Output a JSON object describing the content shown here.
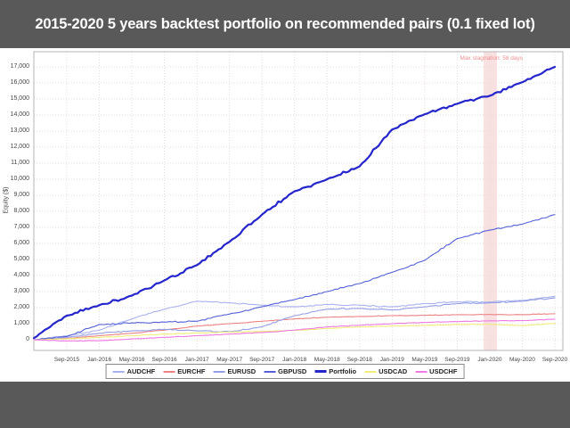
{
  "header": {
    "title": "2015-2020 5 years backtest portfolio on recommended pairs (0.1 fixed lot)"
  },
  "chart_data": {
    "type": "line",
    "title": "2015-2020 5 years backtest portfolio on recommended pairs (0.1 fixed lot)",
    "xlabel": "",
    "ylabel": "Equity ($)",
    "ylim": [
      -700,
      17700
    ],
    "grid": true,
    "legend_position": "bottom",
    "y_ticks": [
      "0",
      "1,000",
      "2,000",
      "3,000",
      "4,000",
      "5,000",
      "6,000",
      "7,000",
      "8,000",
      "9,000",
      "10,000",
      "11,000",
      "12,000",
      "13,000",
      "14,000",
      "15,000",
      "16,000",
      "17,000"
    ],
    "y_tick_values": [
      0,
      1000,
      2000,
      3000,
      4000,
      5000,
      6000,
      7000,
      8000,
      9000,
      10000,
      11000,
      12000,
      13000,
      14000,
      15000,
      16000,
      17000
    ],
    "x_ticks": [
      "Sep-2015",
      "Jan-2016",
      "May-2016",
      "Sep-2016",
      "Jan-2017",
      "May-2017",
      "Sep-2017",
      "Jan-2018",
      "May-2018",
      "Sep-2018",
      "Jan-2019",
      "May-2019",
      "Sep-2019",
      "Jan-2020",
      "May-2020",
      "Sep-2020"
    ],
    "x_points_note": "first value of each series is at the left plot edge (backtest start), remaining 16 align with x_ticks",
    "series": [
      {
        "name": "AUDCHF",
        "color": "#a8b2ee",
        "bold": false,
        "values": [
          0,
          250,
          600,
          1300,
          1900,
          2400,
          2300,
          2150,
          2050,
          2200,
          2150,
          2050,
          2250,
          2350,
          2350,
          2450,
          2700
        ]
      },
      {
        "name": "EURCHF",
        "color": "#ec8282",
        "bold": false,
        "values": [
          0,
          80,
          250,
          400,
          600,
          850,
          1000,
          1150,
          1300,
          1400,
          1450,
          1500,
          1520,
          1560,
          1570,
          1560,
          1620
        ]
      },
      {
        "name": "EURUSD",
        "color": "#949ee4",
        "bold": false,
        "values": [
          0,
          150,
          400,
          550,
          650,
          550,
          500,
          800,
          1500,
          1900,
          1950,
          1850,
          2050,
          2250,
          2300,
          2400,
          2600
        ]
      },
      {
        "name": "GBPUSD",
        "color": "#5560d8",
        "bold": false,
        "values": [
          0,
          200,
          950,
          1050,
          1100,
          1150,
          1600,
          2050,
          2500,
          3000,
          3500,
          4200,
          4950,
          6300,
          6830,
          7200,
          7800
        ]
      },
      {
        "name": "Portfolio",
        "color": "#2525cc",
        "bold": true,
        "values": [
          100,
          1500,
          2150,
          2750,
          3700,
          4650,
          6100,
          7800,
          9250,
          10000,
          10800,
          13100,
          14050,
          14700,
          15200,
          16050,
          17000
        ]
      },
      {
        "name": "USDCAD",
        "color": "#f2ec7a",
        "bold": false,
        "values": [
          0,
          50,
          150,
          250,
          350,
          420,
          480,
          520,
          580,
          700,
          800,
          850,
          900,
          950,
          960,
          880,
          1020
        ]
      },
      {
        "name": "USDCHF",
        "color": "#ee7ae2",
        "bold": false,
        "values": [
          0,
          -80,
          -60,
          50,
          150,
          250,
          350,
          450,
          600,
          800,
          900,
          1000,
          1080,
          1130,
          1180,
          1190,
          1280
        ]
      }
    ],
    "annotation": {
      "text": "Max stagnation: 58 days",
      "color": "#ef8f8f",
      "band_tick_range": [
        12.81,
        13.22
      ],
      "band_color": "#f5c9c9"
    }
  }
}
